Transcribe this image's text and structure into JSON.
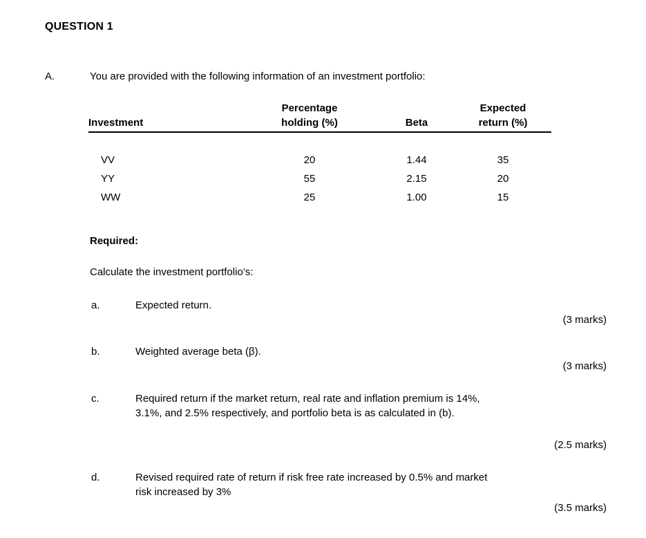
{
  "doc": {
    "title": "QUESTION 1",
    "section_a": {
      "label": "A.",
      "intro": "You are provided with the following information of an investment portfolio:"
    },
    "table": {
      "headers": {
        "investment": "Investment",
        "holding": "Percentage\nholding (%)",
        "beta": "Beta",
        "expected": "Expected\nreturn (%)"
      },
      "rows": [
        {
          "investment": "VV",
          "holding": "20",
          "beta": "1.44",
          "expected": "35"
        },
        {
          "investment": "YY",
          "holding": "55",
          "beta": "2.15",
          "expected": "20"
        },
        {
          "investment": "WW",
          "holding": "25",
          "beta": "1.00",
          "expected": "15"
        }
      ]
    },
    "required_label": "Required:",
    "calculate_label": "Calculate the investment portfolio’s:",
    "items": [
      {
        "letter": "a.",
        "text": "Expected return.",
        "marks": "(3 marks)"
      },
      {
        "letter": "b.",
        "text": "Weighted average beta (β).",
        "marks": "(3 marks)"
      },
      {
        "letter": "c.",
        "text": "Required return if the market return, real rate and inflation premium is 14%,\n3.1%, and 2.5% respectively, and portfolio beta is as calculated in (b).",
        "marks": "(2.5 marks)"
      },
      {
        "letter": "d.",
        "text": "Revised required rate of return if risk free rate increased by 0.5% and market\nrisk increased by 3%",
        "marks": "(3.5 marks)"
      }
    ],
    "colors": {
      "text": "#000000",
      "background": "#ffffff"
    }
  }
}
